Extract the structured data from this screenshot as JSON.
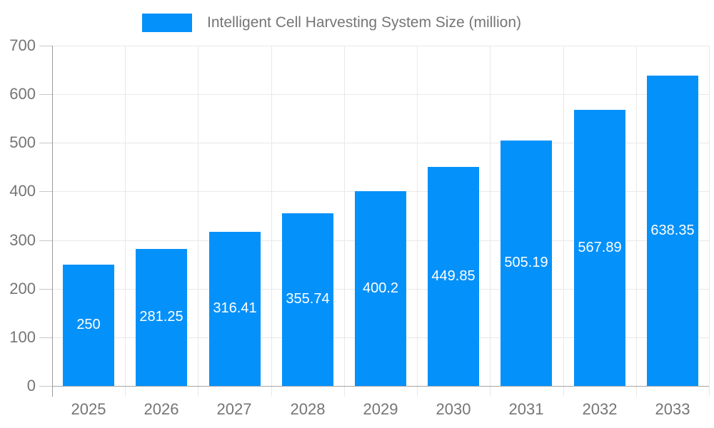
{
  "chart_data": {
    "type": "bar",
    "title": "Intelligent Cell Harvesting System Size (million)",
    "categories": [
      "2025",
      "2026",
      "2027",
      "2028",
      "2029",
      "2030",
      "2031",
      "2032",
      "2033"
    ],
    "values": [
      250,
      281.25,
      316.41,
      355.74,
      400.2,
      449.85,
      505.19,
      567.89,
      638.35
    ],
    "value_labels": [
      "250",
      "281.25",
      "316.41",
      "355.74",
      "400.2",
      "449.85",
      "505.19",
      "567.89",
      "638.35"
    ],
    "xlabel": "",
    "ylabel": "",
    "ylim": [
      0,
      700
    ],
    "ytick_step": 100,
    "ytick_labels": [
      "0",
      "100",
      "200",
      "300",
      "400",
      "500",
      "600",
      "700"
    ],
    "grid": true,
    "legend_position": "top-center",
    "colors": {
      "bar": "#0591FA",
      "legend_text": "#757575",
      "axis_text": "#757575",
      "h_gridline": "#e8e8e8",
      "v_gridline": "#e8e8e8",
      "y_axis_line": "#999999",
      "x_axis_line": "#a6a6a6",
      "tick": "#c6c6c6",
      "bar_label_text": "#ffffff",
      "background": "#ffffff"
    }
  }
}
